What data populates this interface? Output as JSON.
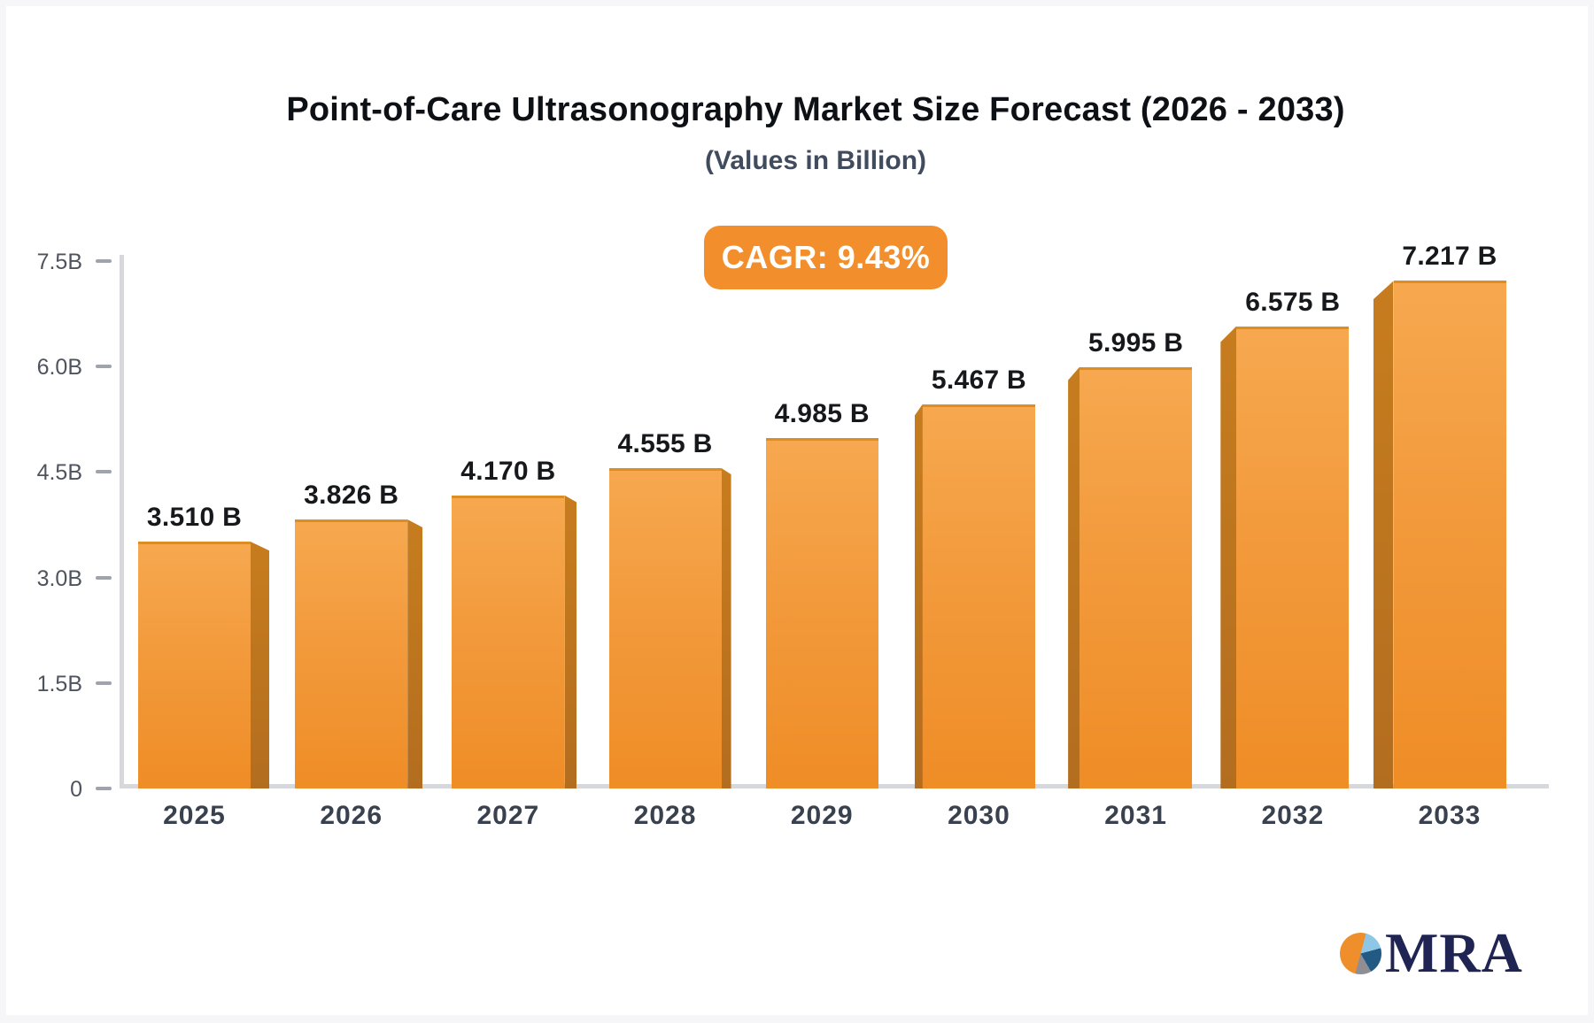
{
  "header": {
    "title": "Point-of-Care Ultrasonography Market Size Forecast (2026 - 2033)",
    "subtitle": "(Values in Billion)"
  },
  "badge": {
    "label": "CAGR: 9.43%"
  },
  "chart_data": {
    "type": "bar",
    "title": "Point-of-Care Ultrasonography Market Size Forecast (2026 - 2033)",
    "subtitle": "(Values in Billion)",
    "annotation": "CAGR: 9.43%",
    "categories": [
      "2025",
      "2026",
      "2027",
      "2028",
      "2029",
      "2030",
      "2031",
      "2032",
      "2033"
    ],
    "values": [
      3.51,
      3.826,
      4.17,
      4.555,
      4.985,
      5.467,
      5.995,
      6.575,
      7.217
    ],
    "value_labels": [
      "3.510 B",
      "3.826 B",
      "4.170 B",
      "4.555 B",
      "4.985 B",
      "5.467 B",
      "5.995 B",
      "6.575 B",
      "7.217 B"
    ],
    "xlabel": "",
    "ylabel": "",
    "ylim": [
      0,
      7.5
    ],
    "y_ticks": [
      {
        "label": "0",
        "value": 0
      },
      {
        "label": "1.5B",
        "value": 1.5
      },
      {
        "label": "3.0B",
        "value": 3.0
      },
      {
        "label": "4.5B",
        "value": 4.5
      },
      {
        "label": "6.0B",
        "value": 6.0
      },
      {
        "label": "7.5B",
        "value": 7.5
      }
    ],
    "grid": false,
    "legend": null,
    "bar_color": "#F2942F",
    "bar_side_color": "#B9711F"
  },
  "logo": {
    "text": "MRA",
    "pie_slice_colors": [
      "#EF8F2C",
      "#8EC7E6",
      "#235A84",
      "#8F8E94"
    ]
  },
  "colors": {
    "accent_orange": "#F28E2B",
    "title_text": "#0D1014",
    "subtitle_text": "#414B5E",
    "axis_line": "#D7D8DC",
    "tick_text": "#4E545E",
    "year_text": "#39414F",
    "value_text": "#16181C",
    "background": "#F6F6F8",
    "card": "#FFFFFF"
  }
}
